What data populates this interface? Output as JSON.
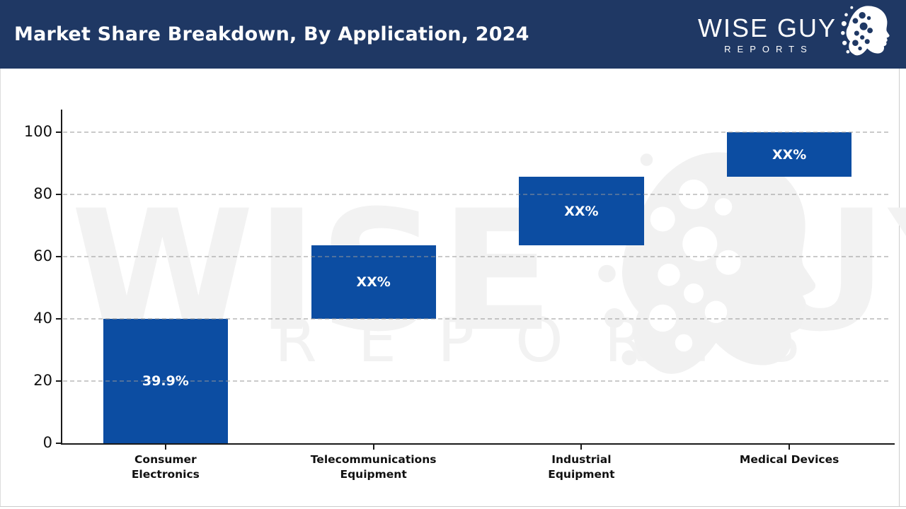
{
  "header": {
    "title": "Market Share Breakdown, By Application, 2024",
    "bg_color": "#1F3864",
    "logo": {
      "line1": "WISE GUY",
      "line2": "REPORTS"
    }
  },
  "watermark": {
    "line1": "WISE GUY",
    "line2": "REPORTS"
  },
  "colors": {
    "bar": "#0C4DA2",
    "bar_label": "#ffffff",
    "grid": "#cbcbcb",
    "axis": "#1a1a1a",
    "watermark": "#f2f2f2"
  },
  "chart_data": {
    "type": "bar",
    "subtype": "waterfall",
    "title": "Market Share Breakdown, By Application, 2024",
    "categories": [
      "Consumer Electronics",
      "Telecommunications Equipment",
      "Industrial Equipment",
      "Medical Devices"
    ],
    "tick_lines": [
      "Consumer\nElectronics",
      "Telecommunications\nEquipment",
      "Industrial\nEquipment",
      "Medical Devices"
    ],
    "segments": [
      {
        "category": "Consumer Electronics",
        "start": 0,
        "end": 39.9,
        "value": 39.9,
        "label": "39.9%"
      },
      {
        "category": "Telecommunications Equipment",
        "start": 39.9,
        "end": 63.6,
        "value": 23.7,
        "label": "XX%"
      },
      {
        "category": "Industrial Equipment",
        "start": 63.6,
        "end": 85.6,
        "value": 22.0,
        "label": "XX%"
      },
      {
        "category": "Medical Devices",
        "start": 85.6,
        "end": 100,
        "value": 14.4,
        "label": "XX%"
      }
    ],
    "xlabel": "",
    "ylabel": "",
    "ylim": [
      0,
      100
    ],
    "yticks": [
      0,
      20,
      40,
      60,
      80,
      100
    ],
    "grid": "horizontal-dashed",
    "legend": "none",
    "bar_color": "#0C4DA2",
    "label_color": "#ffffff"
  }
}
